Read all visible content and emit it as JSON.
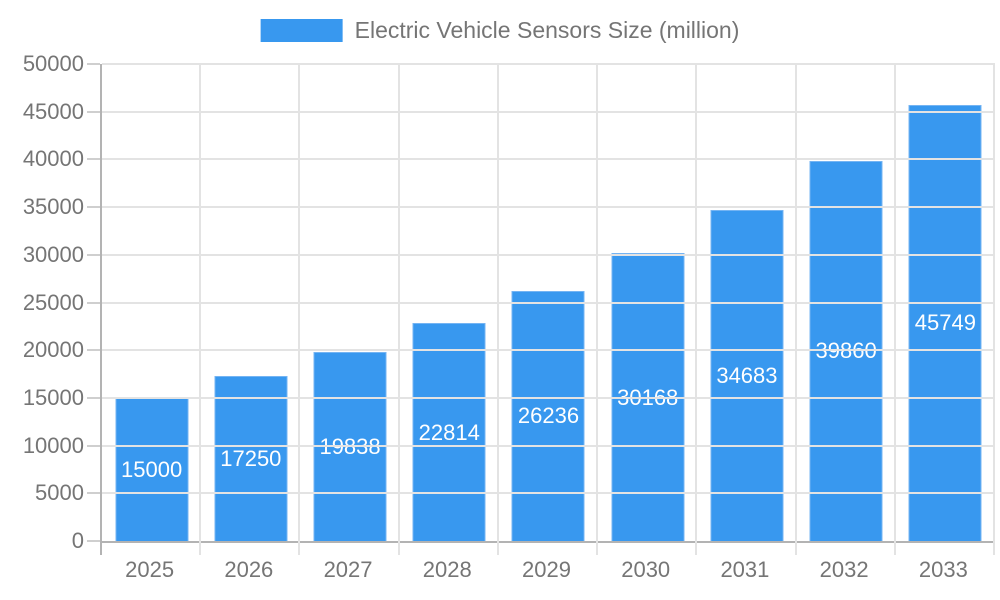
{
  "chart_data": {
    "type": "bar",
    "title": "Electric Vehicle Sensors Size (million)",
    "categories": [
      "2025",
      "2026",
      "2027",
      "2028",
      "2029",
      "2030",
      "2031",
      "2032",
      "2033"
    ],
    "series": [
      {
        "name": "Electric Vehicle Sensors Size (million)",
        "values": [
          15000,
          17250,
          19838,
          22814,
          26236,
          30168,
          34683,
          39860,
          45749
        ]
      }
    ],
    "value_labels": [
      "15000",
      "17250",
      "19838",
      "22814",
      "26236",
      "30168",
      "34683",
      "39860",
      "45749"
    ],
    "xlabel": "",
    "ylabel": "",
    "ylim": [
      0,
      50000
    ],
    "ytick_step": 5000,
    "ytick_labels": [
      "0",
      "5000",
      "10000",
      "15000",
      "20000",
      "25000",
      "30000",
      "35000",
      "40000",
      "45000",
      "50000"
    ],
    "grid": true,
    "legend_position": "top-center",
    "colors": {
      "bar": "#3898ef",
      "bar_border": "#74b4f3",
      "value_label": "#ffffff",
      "axis_text": "#757575",
      "axis_line": "#b3b3b3",
      "gridline": "#e3e3e3",
      "tick": "#cfcfcf",
      "background": "#ffffff"
    }
  }
}
